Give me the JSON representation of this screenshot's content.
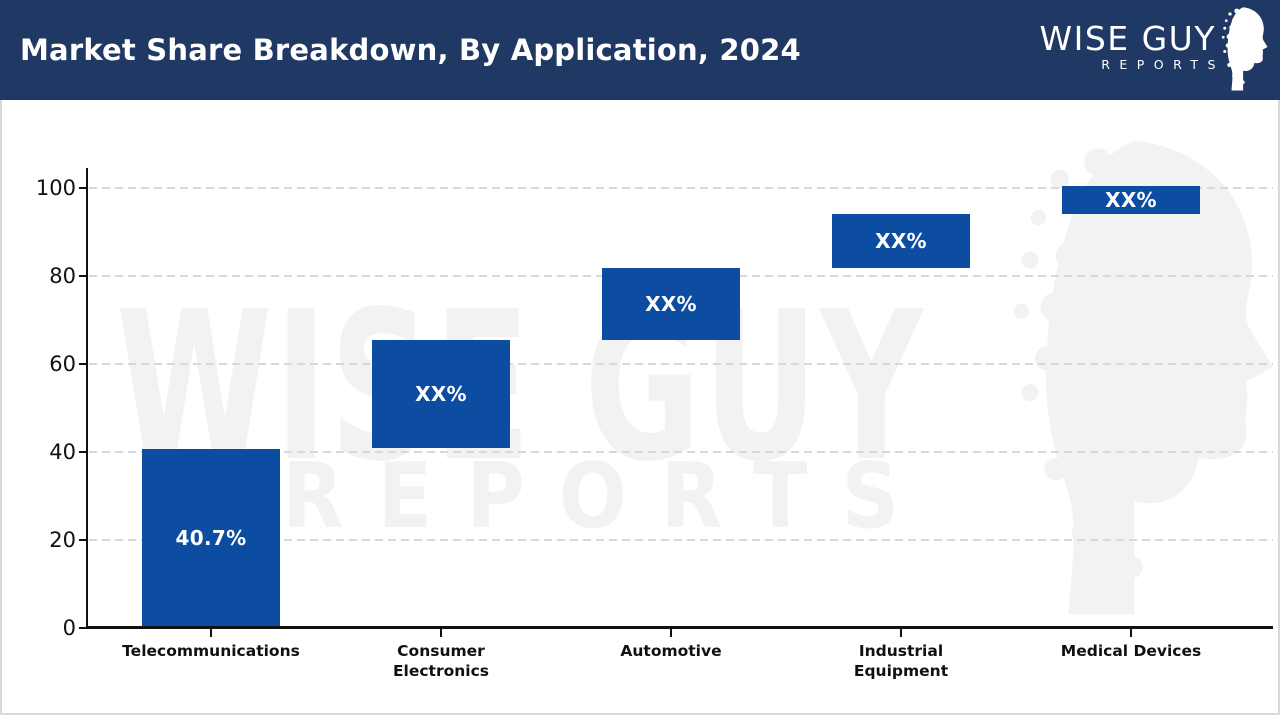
{
  "header": {
    "title": "Market Share Breakdown, By Application, 2024",
    "bg_color": "#203864",
    "text_color": "#ffffff",
    "logo": {
      "line1": "WISE GUY",
      "line2": "REPORTS"
    }
  },
  "watermark": {
    "line1": "WISE GUY",
    "line2": "REPORTS"
  },
  "chart_data": {
    "type": "bar",
    "subtype": "waterfall",
    "title": "Market Share Breakdown, By Application, 2024",
    "categories": [
      "Telecommunications",
      "Consumer Electronics",
      "Automotive",
      "Industrial Equipment",
      "Medical Devices"
    ],
    "categories_lines": [
      [
        "Telecommunications"
      ],
      [
        "Consumer",
        "Electronics"
      ],
      [
        "Automotive"
      ],
      [
        "Industrial",
        "Equipment"
      ],
      [
        "Medical Devices"
      ]
    ],
    "series": [
      {
        "name": "Market share (%)",
        "segments": [
          {
            "category": "Telecommunications",
            "start": 0,
            "end": 40.7,
            "label": "40.7%"
          },
          {
            "category": "Consumer Electronics",
            "start": 41.0,
            "end": 65.5,
            "label": "XX%"
          },
          {
            "category": "Automotive",
            "start": 65.5,
            "end": 81.8,
            "label": "XX%"
          },
          {
            "category": "Industrial Equipment",
            "start": 81.8,
            "end": 94.0,
            "label": "XX%"
          },
          {
            "category": "Medical Devices",
            "start": 94.0,
            "end": 100.5,
            "label": "XX%"
          }
        ]
      }
    ],
    "y_ticks": [
      0,
      20,
      40,
      60,
      80,
      100
    ],
    "ylim": [
      0,
      105
    ],
    "xlabel": "",
    "ylabel": "",
    "legend": "none",
    "grid": "horizontal-dashed",
    "bar_color": "#0d4da1",
    "bar_label_color": "#ffffff",
    "axis_color": "#111111",
    "grid_color": "#d8d8d8"
  }
}
